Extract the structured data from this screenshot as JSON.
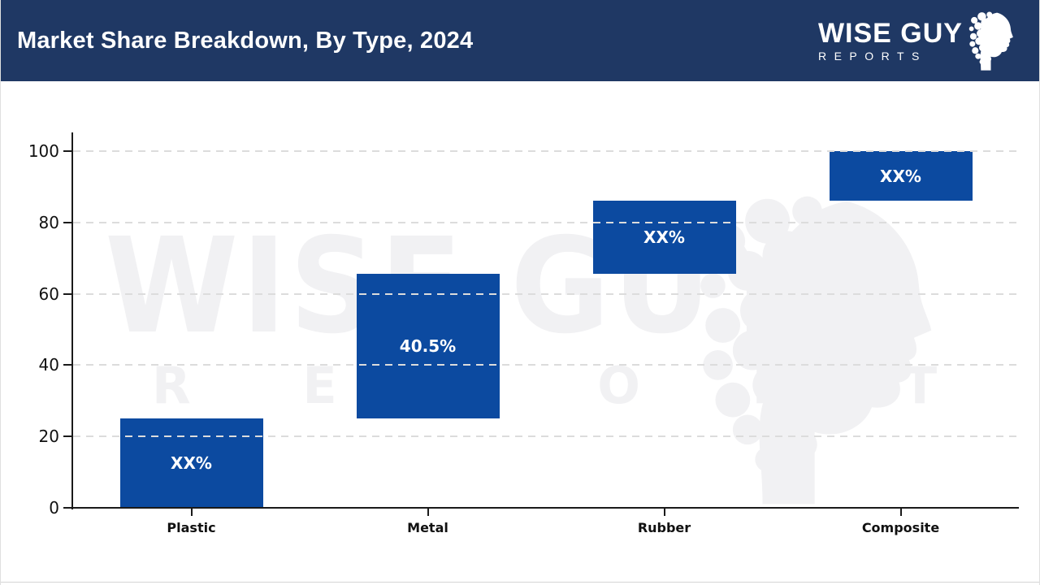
{
  "header": {
    "title": "Market Share Breakdown, By Type, 2024",
    "logo_line1": "WISE GUY",
    "logo_line2": "REPORTS"
  },
  "watermark": {
    "line1": "WISE GUY",
    "line2": "R E P O R T S"
  },
  "colors": {
    "header_bg": "#1f3864",
    "bar": "#0c4aa0",
    "grid": "#dcdcdc",
    "axis": "#1a1a1a",
    "watermark": "#f1f1f3",
    "bar_label": "#ffffff"
  },
  "chart_data": {
    "type": "bar",
    "subtype": "waterfall-floating-bars",
    "title": "Market Share Breakdown, By Type, 2024",
    "categories": [
      "Plastic",
      "Metal",
      "Rubber",
      "Composite"
    ],
    "series": [
      {
        "name": "Market Share %",
        "ranges": [
          [
            0,
            25
          ],
          [
            25,
            65.5
          ],
          [
            65.5,
            86
          ],
          [
            86,
            100
          ]
        ],
        "heights": [
          25,
          40.5,
          20.5,
          14
        ]
      }
    ],
    "bar_labels": [
      "XX%",
      "40.5%",
      "XX%",
      "XX%"
    ],
    "xlabel": "",
    "ylabel": "",
    "ylim": [
      0,
      100
    ],
    "yticks": [
      0,
      20,
      40,
      60,
      80,
      100
    ],
    "grid": "horizontal-dashed",
    "legend": "none"
  }
}
